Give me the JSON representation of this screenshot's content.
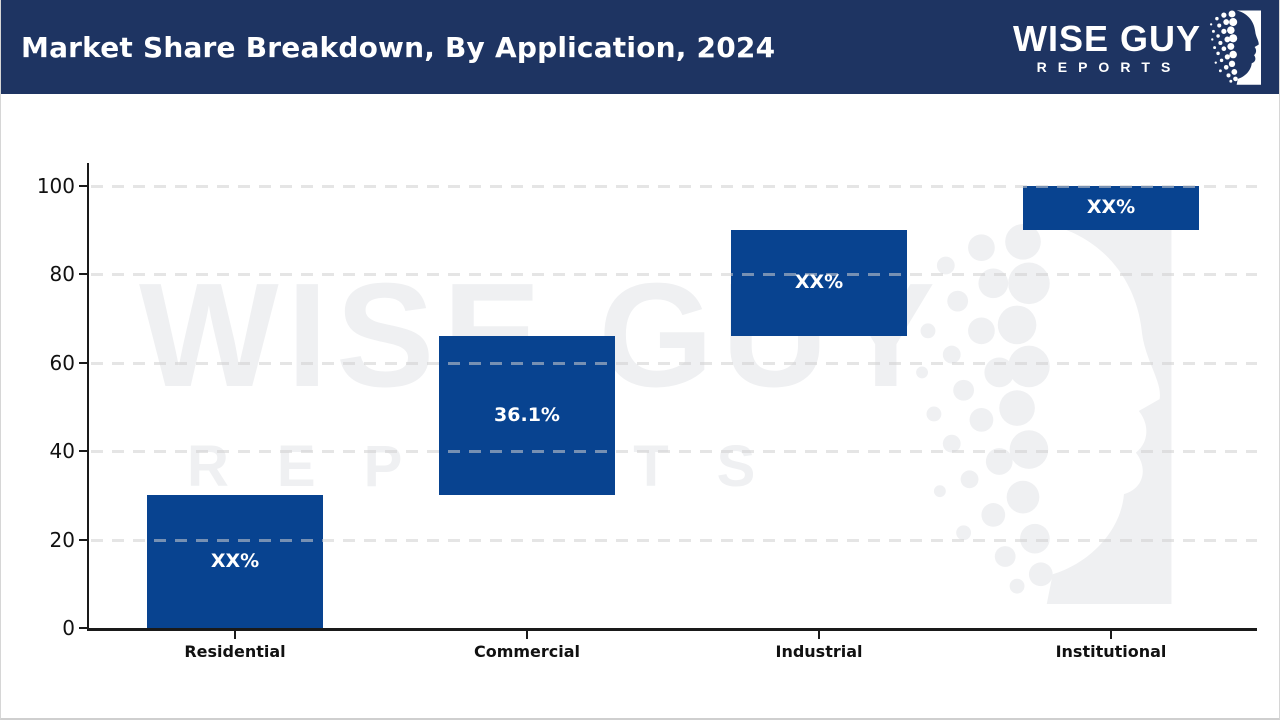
{
  "header": {
    "title": "Market Share Breakdown, By Application, 2024",
    "background": "#1e3462",
    "logo": {
      "line1": "WISE GUY",
      "line2": "REPORTS"
    }
  },
  "watermark": {
    "line1": "WISE GUY",
    "line2": "REPORTS"
  },
  "chart_data": {
    "type": "bar",
    "subtype": "floating-segment-waterfall",
    "title": "Market Share Breakdown, By Application, 2024",
    "xlabel": "",
    "ylabel": "",
    "categories": [
      "Residential",
      "Commercial",
      "Industrial",
      "Institutional"
    ],
    "segments": [
      {
        "category": "Residential",
        "start": 0,
        "end": 30,
        "value": 30,
        "label": "XX%"
      },
      {
        "category": "Commercial",
        "start": 30,
        "end": 66.1,
        "value": 36.1,
        "label": "36.1%"
      },
      {
        "category": "Industrial",
        "start": 66.1,
        "end": 90,
        "value": 23.9,
        "label": "XX%"
      },
      {
        "category": "Institutional",
        "start": 90,
        "end": 100,
        "value": 10,
        "label": "XX%"
      }
    ],
    "yticks": [
      0,
      20,
      40,
      60,
      80,
      100
    ],
    "ylim": [
      0,
      105
    ],
    "bar_color": "#084390",
    "grid": "horizontal-dashed",
    "grid_color": "#d0d0d0",
    "legend": "none"
  }
}
